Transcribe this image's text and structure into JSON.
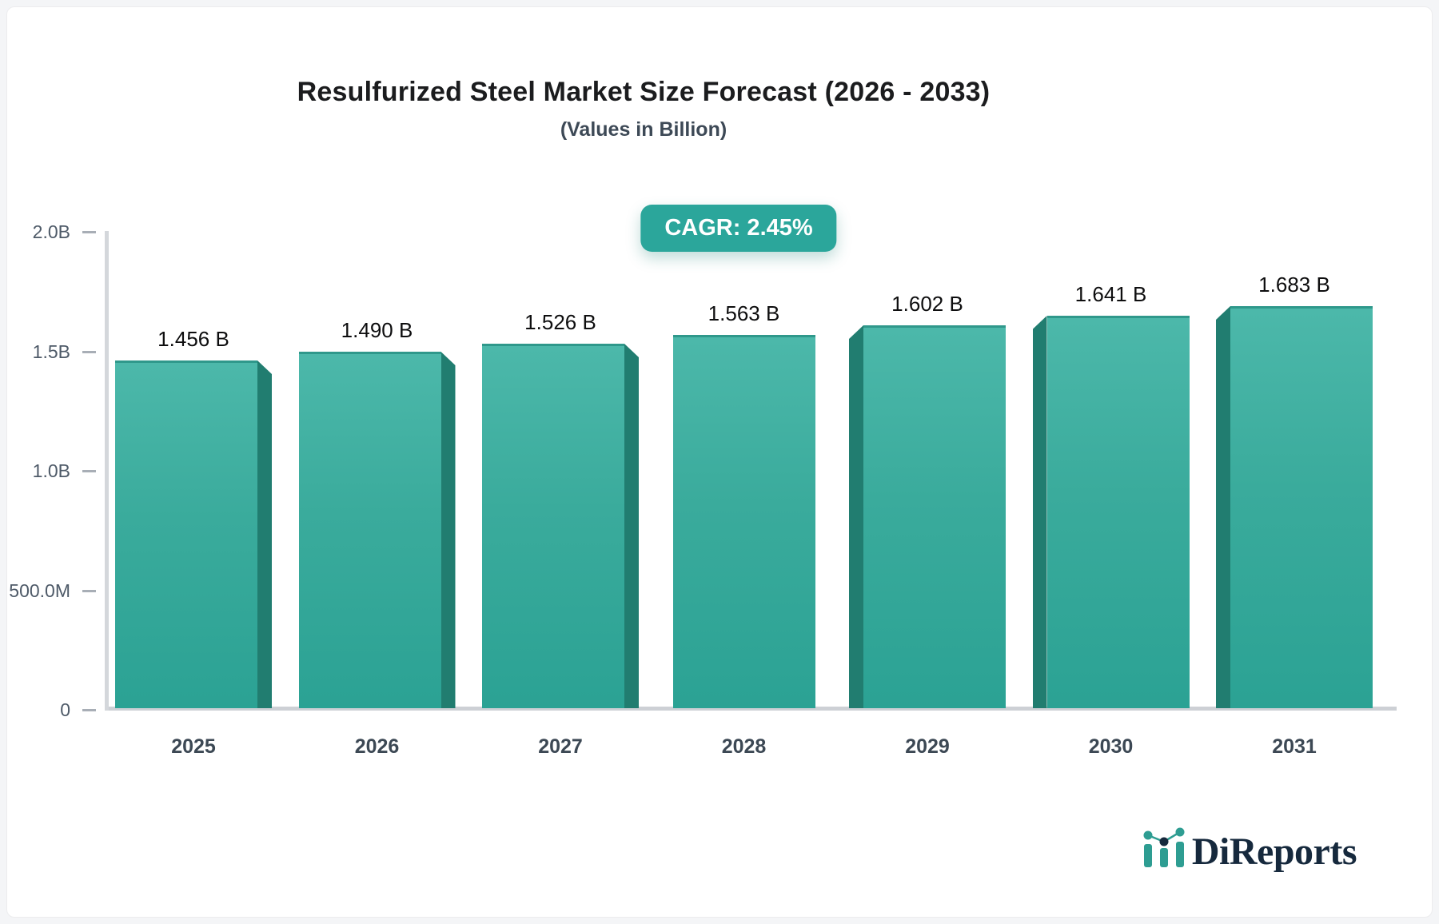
{
  "header": {
    "title": "Resulfurized Steel Market Size Forecast (2026 - 2033)",
    "subtitle": "(Values in Billion)"
  },
  "badge": {
    "label": "CAGR: 2.45%",
    "color": "#2BA69B"
  },
  "chart_data": {
    "type": "bar",
    "title": "Resulfurized Steel Market Size Forecast (2026 - 2033)",
    "subtitle": "(Values in Billion)",
    "annotation": "CAGR: 2.45%",
    "categories": [
      "2025",
      "2026",
      "2027",
      "2028",
      "2029",
      "2030",
      "2031"
    ],
    "values": [
      1.456,
      1.49,
      1.526,
      1.563,
      1.602,
      1.641,
      1.683
    ],
    "value_labels": [
      "1.456 B",
      "1.490 B",
      "1.526 B",
      "1.563 B",
      "1.602 B",
      "1.641 B",
      "1.683 B"
    ],
    "unit": "Billion",
    "yticks": [
      {
        "label": "2.0B",
        "value": 2.0
      },
      {
        "label": "1.5B",
        "value": 1.5
      },
      {
        "label": "1.0B",
        "value": 1.0
      },
      {
        "label": "500.0M",
        "value": 0.5
      },
      {
        "label": "0",
        "value": 0
      }
    ],
    "ylim": [
      0,
      2.0
    ],
    "xlabel": "",
    "ylabel": "",
    "grid": false,
    "legend": false,
    "bar_color": "#3BB0A1",
    "bar_side_color": "#217D70"
  },
  "logo": {
    "text": "DiReports",
    "icon": "bar-chart-logo-icon"
  }
}
